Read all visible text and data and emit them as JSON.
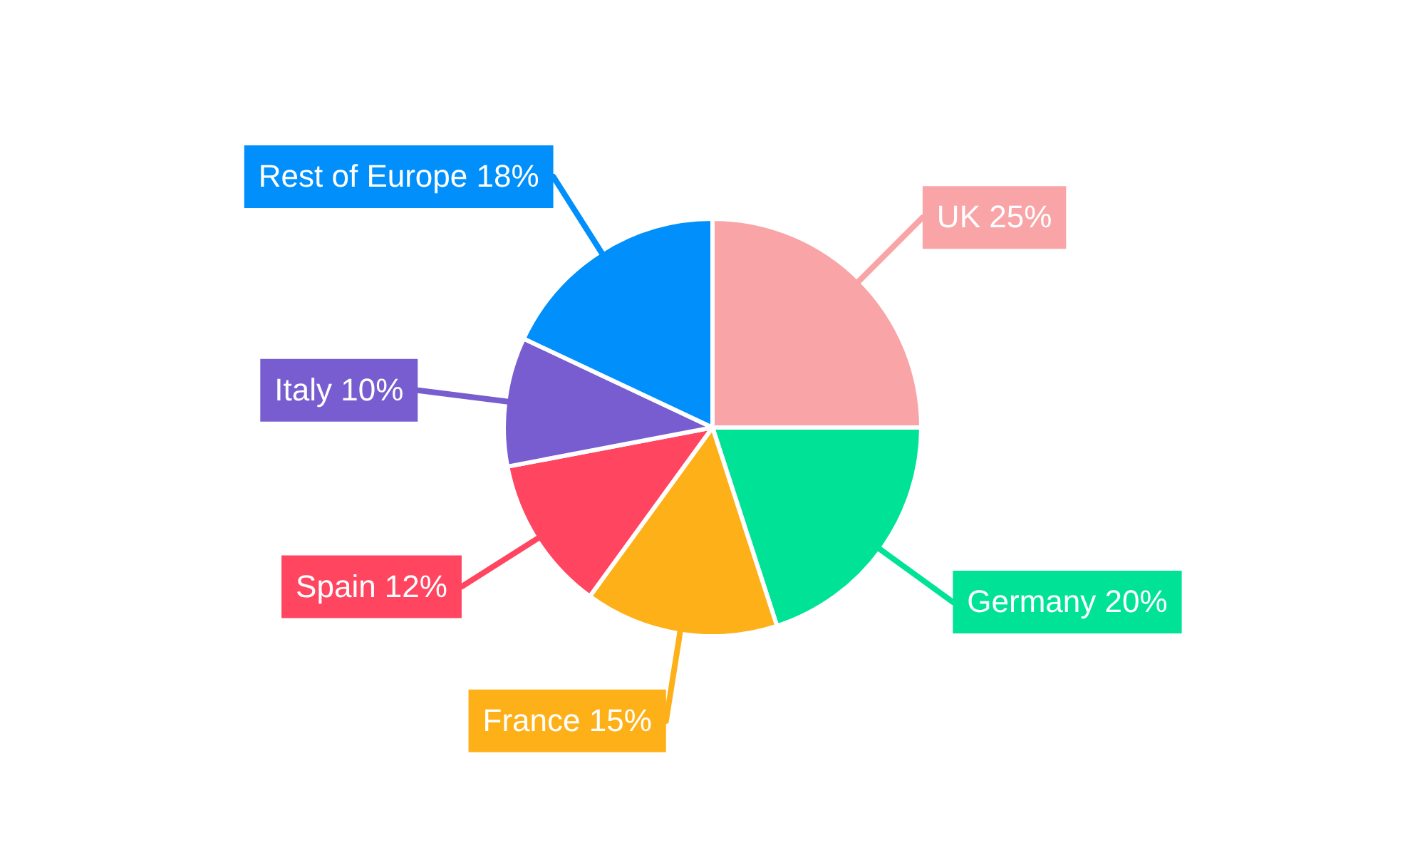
{
  "chart_data": {
    "type": "pie",
    "categories": [
      "UK",
      "Germany",
      "France",
      "Spain",
      "Italy",
      "Rest of Europe"
    ],
    "values": [
      25,
      20,
      15,
      12,
      10,
      18
    ],
    "value_labels": [
      "25%",
      "20%",
      "15%",
      "12%",
      "10%",
      "18%"
    ],
    "colors": [
      "#f9a4a6",
      "#00e396",
      "#feb019",
      "#ff4560",
      "#775dd0",
      "#008ffb"
    ],
    "legend": false
  }
}
